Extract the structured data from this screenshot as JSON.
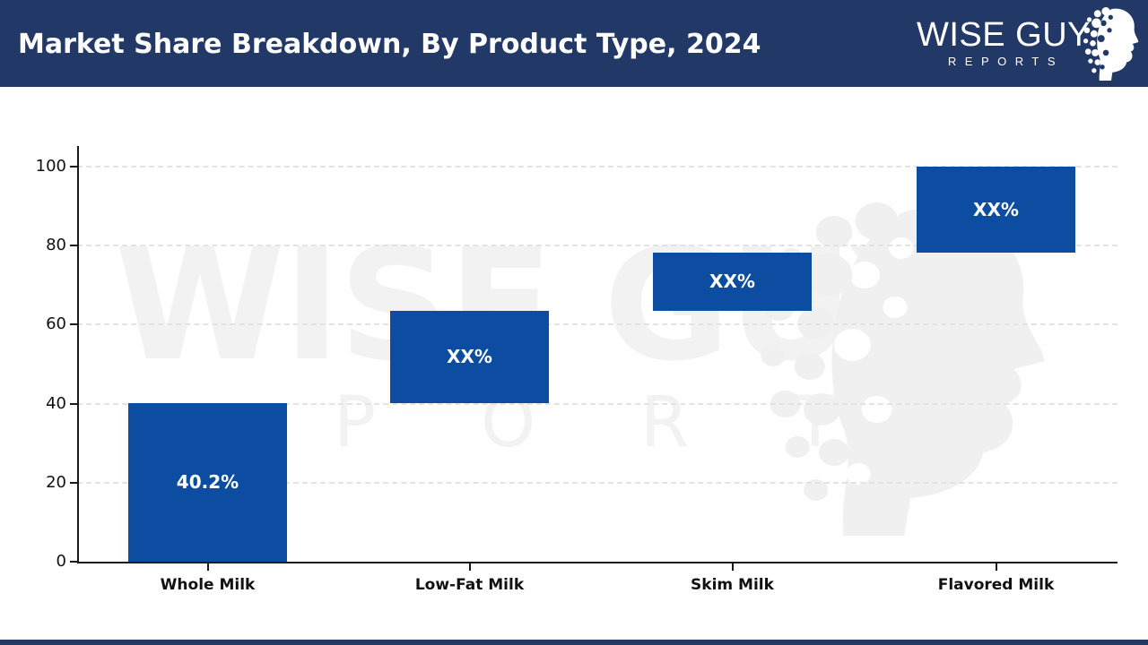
{
  "header": {
    "title": "Market Share Breakdown, By Product Type, 2024",
    "logo": {
      "wordmark": "WISE GUY",
      "subtext": "REPORTS"
    }
  },
  "watermark": {
    "big_text": "WISE GUY",
    "sub_text": "P O R T S"
  },
  "colors": {
    "header_bg": "#223866",
    "bar": "#0c4da2",
    "bar_label": "#ffffff",
    "watermark": "#f2f2f2"
  },
  "chart_data": {
    "type": "bar",
    "variant": "waterfall",
    "title": "Market Share Breakdown, By Product Type, 2024",
    "xlabel": "",
    "ylabel": "",
    "categories": [
      "Whole Milk",
      "Low-Fat Milk",
      "Skim Milk",
      "Flavored Milk"
    ],
    "segments": [
      {
        "category": "Whole Milk",
        "start": 0,
        "end": 40.2,
        "label": "40.2%"
      },
      {
        "category": "Low-Fat Milk",
        "start": 40.2,
        "end": 63.5,
        "label": "XX%"
      },
      {
        "category": "Skim Milk",
        "start": 63.5,
        "end": 78.3,
        "label": "XX%"
      },
      {
        "category": "Flavored Milk",
        "start": 78.3,
        "end": 100,
        "label": "XX%"
      }
    ],
    "yticks": [
      0,
      20,
      40,
      60,
      80,
      100
    ],
    "ylim": [
      0,
      105
    ],
    "grid": {
      "horizontal": true,
      "style": "dashed"
    },
    "legend": "none",
    "bar_color": "#0c4da2",
    "bar_label_color": "#ffffff"
  }
}
